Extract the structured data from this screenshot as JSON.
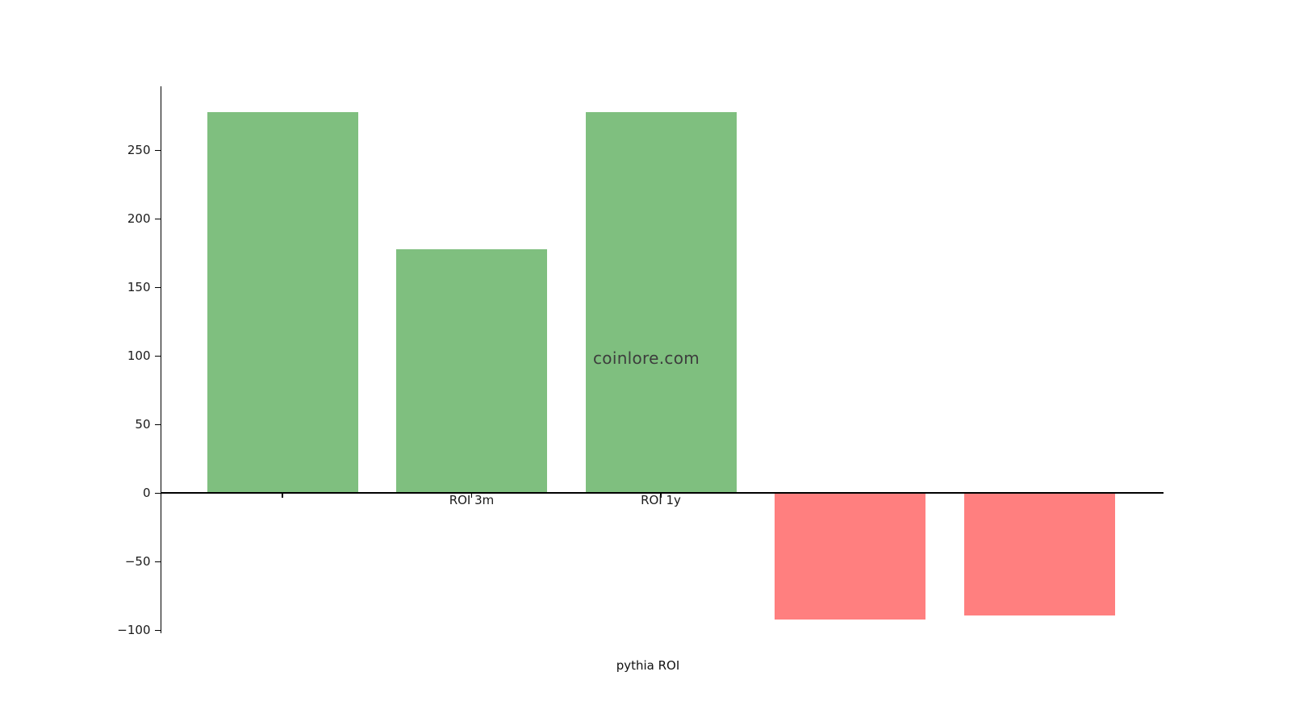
{
  "page": {
    "background_color": "#ffffff"
  },
  "watermark": {
    "text": "coinlore.com",
    "color": "#3d3d3d"
  },
  "chart_data": {
    "type": "bar",
    "title": "pythia ROI",
    "xlabel": "pythia ROI",
    "ylabel": "",
    "watermark": "coinlore.com",
    "categories": [
      "",
      "ROI 3m",
      "ROI 1y",
      "",
      ""
    ],
    "values": [
      278,
      178,
      278,
      -92,
      -89
    ],
    "positive_color": "#7fbf7f",
    "negative_color": "#ff7f7f",
    "axis_color": "#000000",
    "text_color": "#1a1a1a",
    "yticks": [
      250,
      200,
      150,
      100,
      50,
      0,
      -50,
      -100
    ],
    "ytick_labels": [
      "250",
      "200",
      "150",
      "100",
      "50",
      "0",
      "−50",
      "−100"
    ],
    "ylim": [
      -115,
      297
    ],
    "grid": false,
    "legend": null
  }
}
